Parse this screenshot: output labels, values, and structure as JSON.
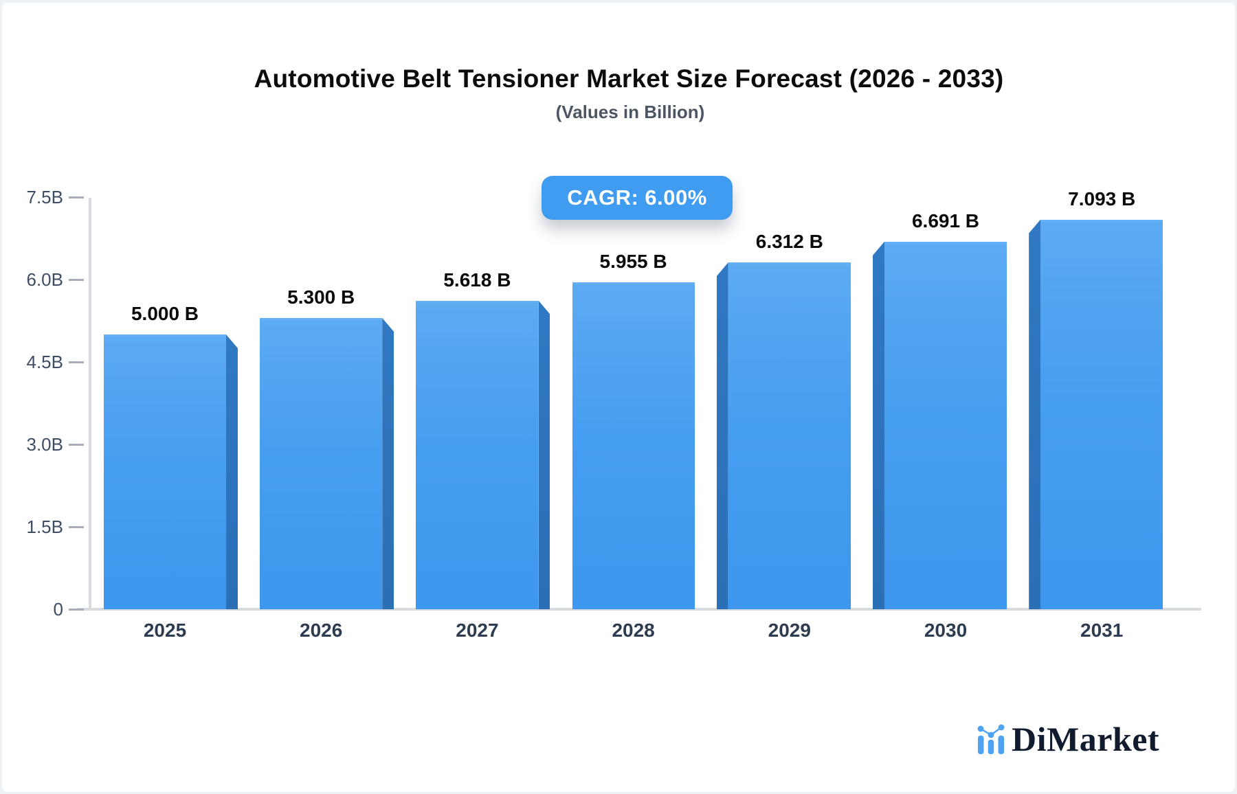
{
  "page": {
    "background": "#eef1f4",
    "card_background": "#ffffff"
  },
  "header": {
    "title": "Automotive Belt Tensioner Market Size Forecast (2026 - 2033)",
    "subtitle": "(Values in Billion)"
  },
  "badge": {
    "label": "CAGR: 6.00%",
    "background": "#3f9cf0",
    "text_color": "#ffffff"
  },
  "chart_data": {
    "type": "bar",
    "title": "Automotive Belt Tensioner Market Size Forecast (2026 - 2033)",
    "subtitle": "(Values in Billion)",
    "categories": [
      "2025",
      "2026",
      "2027",
      "2028",
      "2029",
      "2030",
      "2031"
    ],
    "values": [
      5.0,
      5.3,
      5.618,
      5.955,
      6.312,
      6.691,
      7.093
    ],
    "value_labels": [
      "5.000 B",
      "5.300 B",
      "5.618 B",
      "5.955 B",
      "6.312 B",
      "6.691 B",
      "7.093 B"
    ],
    "xlabel": "",
    "ylabel": "",
    "ylim": [
      0,
      7.5
    ],
    "yticks": [
      {
        "value": 0.0,
        "label": "0"
      },
      {
        "value": 1.5,
        "label": "1.5B"
      },
      {
        "value": 3.0,
        "label": "3.0B"
      },
      {
        "value": 4.5,
        "label": "4.5B"
      },
      {
        "value": 6.0,
        "label": "6.0B"
      },
      {
        "value": 7.5,
        "label": "7.5B"
      }
    ],
    "grid": false,
    "legend": "none",
    "annotation": "CAGR: 6.00%",
    "bar_color": "#4aa0ef",
    "bar_side_color": "#2e75bc"
  },
  "branding": {
    "name": "DiMarket",
    "icon": "bar-chart-logo-icon",
    "icon_color": "#4da3f2",
    "text_color": "#111b2e"
  }
}
